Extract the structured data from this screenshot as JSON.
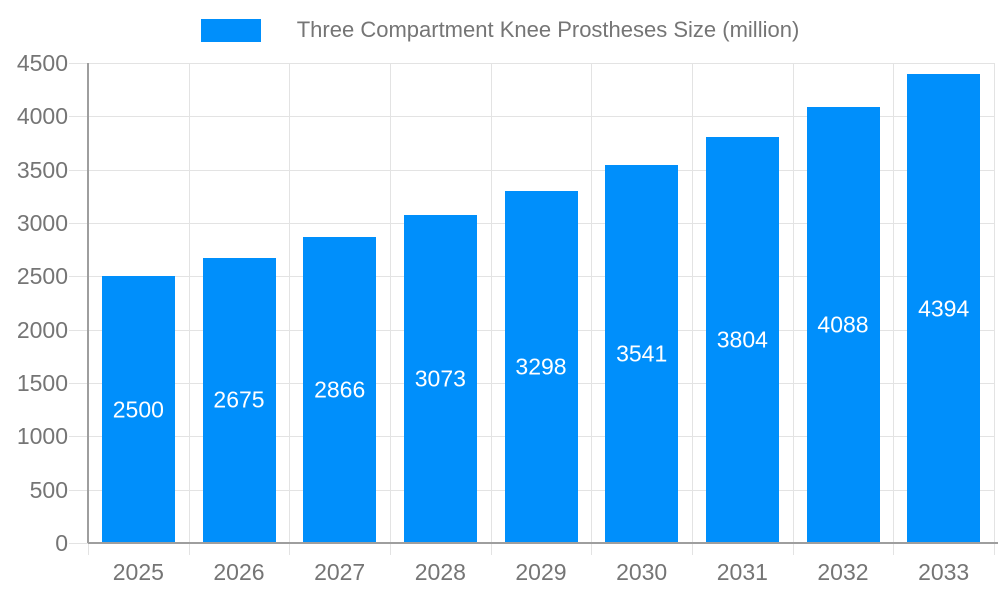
{
  "colors": {
    "bar": "#008FFB",
    "grid": "#e3e3e3",
    "axis": "#9e9e9e",
    "tick_text": "#757575",
    "value_text": "#ffffff",
    "background": "#ffffff"
  },
  "legend": {
    "series_label": "Three Compartment Knee Prostheses Size (million)"
  },
  "chart_data": {
    "type": "bar",
    "title": "Three Compartment Knee Prostheses Size (million)",
    "categories": [
      "2025",
      "2026",
      "2027",
      "2028",
      "2029",
      "2030",
      "2031",
      "2032",
      "2033"
    ],
    "values": [
      2500,
      2675,
      2866,
      3073,
      3298,
      3541,
      3804,
      4088,
      4394
    ],
    "xlabel": "",
    "ylabel": "",
    "ylim": [
      0,
      4500
    ],
    "y_ticks": [
      0,
      500,
      1000,
      1500,
      2000,
      2500,
      3000,
      3500,
      4000,
      4500
    ],
    "grid": true,
    "legend_position": "top",
    "value_labels": "inside-center-white"
  }
}
